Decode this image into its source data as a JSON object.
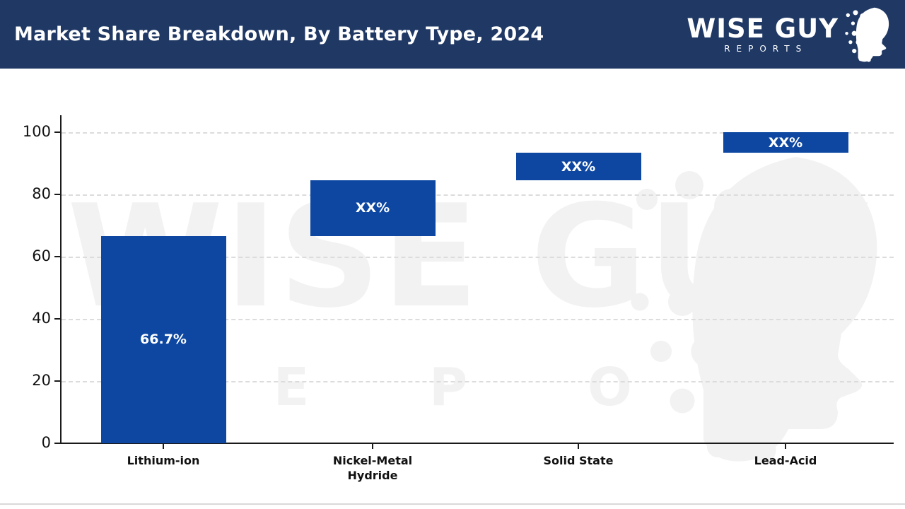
{
  "header": {
    "title": "Market Share Breakdown, By Battery Type, 2024",
    "logo": {
      "line1": "WISE GUY",
      "line2": "REPORTS"
    }
  },
  "watermark": {
    "line1": "WISE GUY",
    "line2": "R E P O R T S"
  },
  "colors": {
    "header_bg": "#1f3864",
    "bar": "#0d47a1",
    "grid": "#dcdcdc",
    "axis": "#1a1a1a",
    "title_text": "#ffffff",
    "bar_label_text": "#ffffff",
    "watermark": "#f2f2f3"
  },
  "chart_data": {
    "type": "bar",
    "subtype": "waterfall",
    "title": "Market Share Breakdown, By Battery Type, 2024",
    "categories": [
      "Lithium-ion",
      "Nickel-Metal Hydride",
      "Solid State",
      "Lead-Acid"
    ],
    "categories_display": [
      "Lithium-ion",
      "Nickel-Metal\nHydride",
      "Solid State",
      "Lead-Acid"
    ],
    "segments": [
      {
        "category": "Lithium-ion",
        "start": 0,
        "end": 66.7,
        "label": "66.7%"
      },
      {
        "category": "Nickel-Metal Hydride",
        "start": 66.7,
        "end": 84.5,
        "label": "XX%"
      },
      {
        "category": "Solid State",
        "start": 84.5,
        "end": 93.4,
        "label": "XX%"
      },
      {
        "category": "Lead-Acid",
        "start": 93.4,
        "end": 100,
        "label": "XX%"
      }
    ],
    "xlabel": "",
    "ylabel": "",
    "yticks": [
      0,
      20,
      40,
      60,
      80,
      100
    ],
    "ylim": [
      0,
      105
    ],
    "grid": "horizontal-dashed",
    "legend": null
  }
}
